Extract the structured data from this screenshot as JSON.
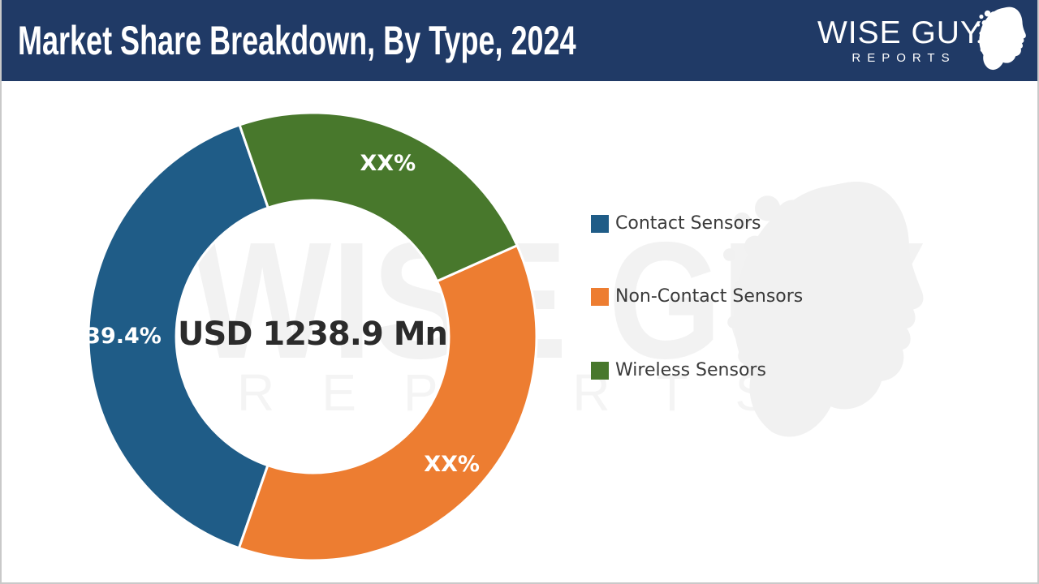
{
  "page": {
    "background_color": "#FFFFFF",
    "border_color": "#C9C9C9"
  },
  "header": {
    "title": "Market Share Breakdown, By Type, 2024",
    "background_color": "#203A66",
    "text_color": "#FFFFFF",
    "logo": {
      "line1": "WISE GUY",
      "line2": "REPORTS",
      "face_icon": "dotted-head-profile",
      "color": "#FFFFFF"
    }
  },
  "chart_data": {
    "type": "pie",
    "subtype": "donut",
    "title": "Market Share Breakdown, By Type, 2024",
    "center_label": "USD 1238.9 Mn",
    "center_label_color": "#2B2B2B",
    "start_angle_deg": 341,
    "direction": "counterclockwise",
    "inner_radius_ratio": 0.61,
    "legend_position": "right",
    "slice_label_color": "#FFFFFF",
    "separator_color": "#FFFFFF",
    "segments": [
      {
        "name": "Contact Sensors",
        "value_pct": 39.4,
        "display_label": "39.4%",
        "color": "#1F5C87"
      },
      {
        "name": "Non-Contact Sensors",
        "value_pct": 37.0,
        "display_label": "XX%",
        "color": "#ED7D31"
      },
      {
        "name": "Wireless Sensors",
        "value_pct": 23.6,
        "display_label": "XX%",
        "color": "#48782C"
      }
    ]
  },
  "legend": {
    "text_color": "#3A3A3A"
  },
  "watermark": {
    "line1": "WISE GUY",
    "line2": "REPORTS",
    "color": "#F2F2F2"
  }
}
